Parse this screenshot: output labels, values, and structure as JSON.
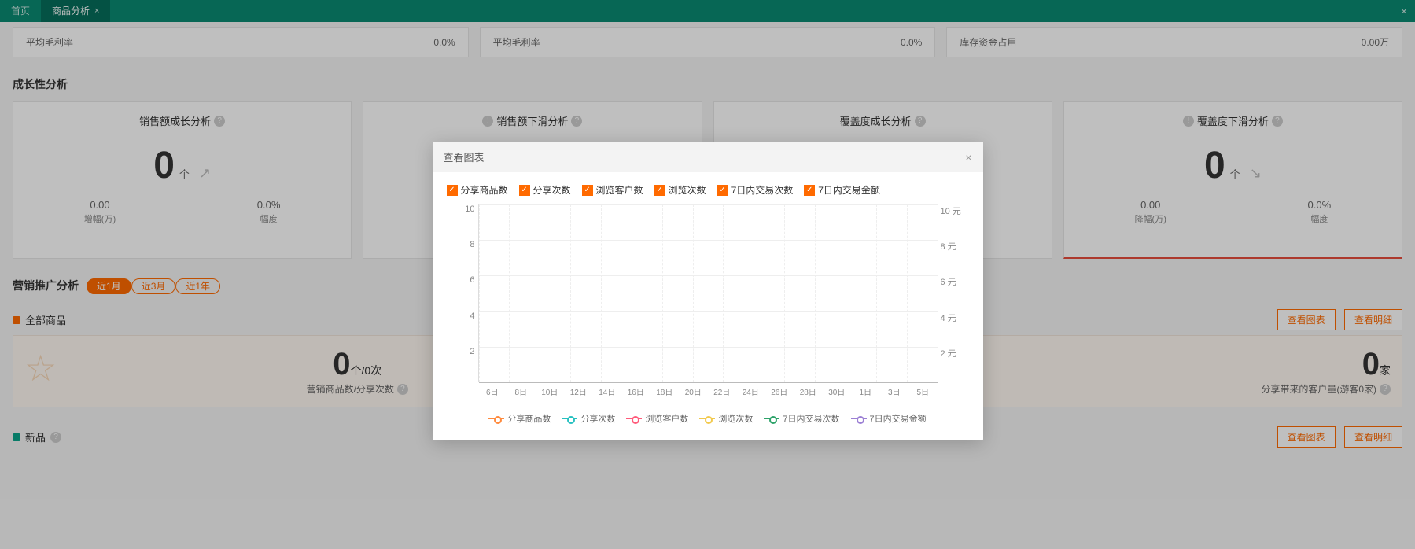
{
  "tabs": {
    "home": "首页",
    "product": "商品分析"
  },
  "top_cards": [
    {
      "label": "平均毛利率",
      "value": "0.0%"
    },
    {
      "label": "平均毛利率",
      "value": "0.0%"
    },
    {
      "label": "库存资金占用",
      "value": "0.00万"
    }
  ],
  "growth_section_title": "成长性分析",
  "growth_cards": [
    {
      "title": "销售额成长分析",
      "big": "0",
      "unit": "个",
      "trend": "up",
      "left_v": "0.00",
      "left_l": "增幅(万)",
      "right_v": "0.0%",
      "right_l": "幅度",
      "red_bottom": false,
      "has_info_left": false
    },
    {
      "title": "销售额下滑分析",
      "big": "",
      "unit": "",
      "trend": "",
      "left_v": "",
      "left_l": "",
      "right_v": "",
      "right_l": "",
      "red_bottom": false,
      "has_info_left": true
    },
    {
      "title": "覆盖度成长分析",
      "big": "",
      "unit": "",
      "trend": "",
      "left_v": "",
      "left_l": "",
      "right_v": "",
      "right_l": "",
      "red_bottom": false,
      "has_info_left": false
    },
    {
      "title": "覆盖度下滑分析",
      "big": "0",
      "unit": "个",
      "trend": "down",
      "left_v": "0.00",
      "left_l": "降幅(万)",
      "right_v": "0.0%",
      "right_l": "幅度",
      "red_bottom": true,
      "has_info_left": true
    }
  ],
  "marketing": {
    "title": "营销推广分析",
    "periods": [
      "近1月",
      "近3月",
      "近1年"
    ],
    "active_period": 0,
    "groups": [
      {
        "dot": "orange",
        "label": "全部商品"
      },
      {
        "dot": "teal",
        "label": "新品"
      }
    ],
    "buttons": {
      "chart": "查看图表",
      "detail": "查看明细"
    },
    "cards": [
      {
        "big": "0",
        "big_suffix": "个/0次",
        "sub": "营销商品数/分享次数",
        "has_info": true,
        "align": "center",
        "icon": "star"
      },
      {
        "big": "0",
        "big_suffix": "家",
        "sub": "分享带来的客户量(游客0家)",
        "has_info": true,
        "align": "right",
        "icon": "building"
      }
    ]
  },
  "modal": {
    "title": "查看图表",
    "checkboxes": [
      "分享商品数",
      "分享次数",
      "浏览客户数",
      "浏览次数",
      "7日内交易次数",
      "7日内交易金额"
    ],
    "chart": {
      "type": "line",
      "y_left_ticks": [
        "10",
        "8",
        "6",
        "4",
        "2",
        ""
      ],
      "y_right_ticks": [
        "10 元",
        "8 元",
        "6 元",
        "4 元",
        "2 元",
        ""
      ],
      "x_ticks": [
        "6日",
        "8日",
        "10日",
        "12日",
        "14日",
        "16日",
        "18日",
        "20日",
        "22日",
        "24日",
        "26日",
        "28日",
        "30日",
        "1日",
        "3日",
        "5日"
      ],
      "grid_color": "#eeeeee",
      "axis_color": "#bbbbbb",
      "background_color": "#ffffff",
      "label_fontsize": 11,
      "ylim": [
        0,
        10
      ],
      "series": [
        {
          "name": "分享商品数",
          "color": "#ff8a3d",
          "values": [
            0,
            0,
            0,
            0,
            0,
            0,
            0,
            0,
            0,
            0,
            0,
            0,
            0,
            0,
            0,
            0
          ]
        },
        {
          "name": "分享次数",
          "color": "#26c0c0",
          "values": [
            0,
            0,
            0,
            0,
            0,
            0,
            0,
            0,
            0,
            0,
            0,
            0,
            0,
            0,
            0,
            0
          ]
        },
        {
          "name": "浏览客户数",
          "color": "#ff5a7a",
          "values": [
            0,
            0,
            0,
            0,
            0,
            0,
            0,
            0,
            0,
            0,
            0,
            0,
            0,
            0,
            0,
            0
          ]
        },
        {
          "name": "浏览次数",
          "color": "#f2c94c",
          "values": [
            0,
            0,
            0,
            0,
            0,
            0,
            0,
            0,
            0,
            0,
            0,
            0,
            0,
            0,
            0,
            0
          ]
        },
        {
          "name": "7日内交易次数",
          "color": "#2ea36a",
          "values": [
            0,
            0,
            0,
            0,
            0,
            0,
            0,
            0,
            0,
            0,
            0,
            0,
            0,
            0,
            0,
            0
          ]
        },
        {
          "name": "7日内交易金额",
          "color": "#9b7fd4",
          "values": [
            0,
            0,
            0,
            0,
            0,
            0,
            0,
            0,
            0,
            0,
            0,
            0,
            0,
            0,
            0,
            0
          ]
        }
      ]
    }
  }
}
